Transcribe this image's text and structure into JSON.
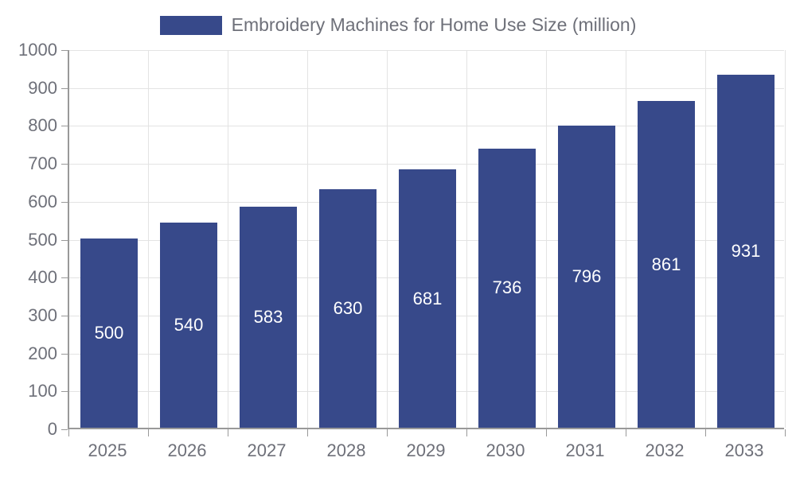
{
  "legend": {
    "label": "Embroidery Machines for Home Use Size (million)"
  },
  "colors": {
    "bar": "#37498a",
    "bar_label": "#ffffff",
    "axis_label": "#6e7079",
    "legend_text": "#6e7079",
    "grid": "#e3e3e3",
    "axis_line": "#999999",
    "background": "#ffffff"
  },
  "chart_data": {
    "type": "bar",
    "title": "Embroidery Machines for Home Use Size (million)",
    "categories": [
      "2025",
      "2026",
      "2027",
      "2028",
      "2029",
      "2030",
      "2031",
      "2032",
      "2033"
    ],
    "values": [
      500,
      540,
      583,
      630,
      681,
      736,
      796,
      861,
      931
    ],
    "xlabel": "",
    "ylabel": "",
    "ylim": [
      0,
      1000
    ],
    "ytick_interval": 100,
    "ytick_labels": [
      "0",
      "100",
      "200",
      "300",
      "400",
      "500",
      "600",
      "700",
      "800",
      "900",
      "1000"
    ],
    "grid": true,
    "legend_position": "top-center",
    "bar_labels_inside": true
  }
}
